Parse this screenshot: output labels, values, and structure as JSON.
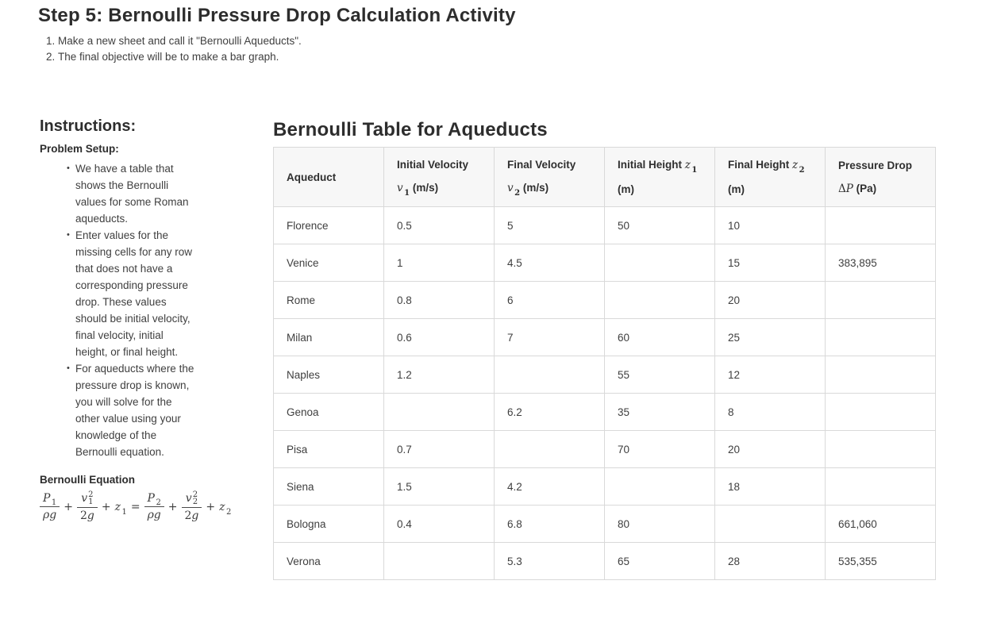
{
  "page": {
    "title": "Step 5: Bernoulli Pressure Drop Calculation Activity",
    "steps": [
      "Make a new sheet and call it \"Bernoulli Aqueducts\".",
      "The final objective will be to make a bar graph."
    ]
  },
  "instructions": {
    "heading": "Instructions:",
    "subheading": "Problem Setup:",
    "bullets": [
      "We have a table that shows the Bernoulli values for some Roman aqueducts.",
      "Enter values for the missing cells for any row that does not have a corresponding pressure drop. These values should be initial velocity, final velocity, initial height, or final height.",
      "For aqueducts where the pressure drop is known, you will solve for the other value using your knowledge of the Bernoulli equation."
    ],
    "equation_heading": "Bernoulli Equation"
  },
  "equation": {
    "terms": [
      {
        "type": "frac",
        "num": {
          "var": "P",
          "sub": "1"
        },
        "den": "ρg"
      },
      {
        "type": "op",
        "v": "+"
      },
      {
        "type": "frac",
        "num": {
          "var": "v",
          "sub": "1",
          "sup": "2"
        },
        "den": "2g"
      },
      {
        "type": "op",
        "v": "+"
      },
      {
        "type": "var",
        "var": "z",
        "sub": "1"
      },
      {
        "type": "op",
        "v": "="
      },
      {
        "type": "frac",
        "num": {
          "var": "P",
          "sub": "2"
        },
        "den": "ρg"
      },
      {
        "type": "op",
        "v": "+"
      },
      {
        "type": "frac",
        "num": {
          "var": "v",
          "sub": "2",
          "sup": "2"
        },
        "den": "2g"
      },
      {
        "type": "op",
        "v": "+"
      },
      {
        "type": "var",
        "var": "z",
        "sub": "2"
      }
    ]
  },
  "table": {
    "title": "Bernoulli Table for Aqueducts",
    "column_ids": [
      "aqueduct",
      "initial-velocity",
      "final-velocity",
      "initial-height",
      "final-height",
      "pressure-drop"
    ],
    "columns": [
      {
        "parts": [
          {
            "t": "b",
            "v": "Aqueduct"
          }
        ]
      },
      {
        "parts": [
          {
            "t": "b",
            "v": "Initial Velocity "
          },
          {
            "t": "m",
            "v": "v",
            "sub": "1"
          },
          {
            "t": "b",
            "v": " (m/s)"
          }
        ]
      },
      {
        "parts": [
          {
            "t": "b",
            "v": "Final Velocity "
          },
          {
            "t": "m",
            "v": "v",
            "sub": "2"
          },
          {
            "t": "b",
            "v": " (m/s)"
          }
        ]
      },
      {
        "parts": [
          {
            "t": "b",
            "v": "Initial Height "
          },
          {
            "t": "m",
            "v": "z",
            "sub": "1"
          },
          {
            "t": "b",
            "v": " (m)"
          }
        ]
      },
      {
        "parts": [
          {
            "t": "b",
            "v": "Final Height "
          },
          {
            "t": "m",
            "v": "z",
            "sub": "2"
          },
          {
            "t": "b",
            "v": " (m)"
          }
        ]
      },
      {
        "parts": [
          {
            "t": "b",
            "v": "Pressure Drop "
          },
          {
            "t": "m",
            "v": "P",
            "pre": "Δ"
          },
          {
            "t": "b",
            "v": " (Pa)"
          }
        ]
      }
    ],
    "rows": [
      {
        "cells": [
          "Florence",
          "0.5",
          "5",
          "50",
          "10",
          ""
        ]
      },
      {
        "cells": [
          "Venice",
          "1",
          "4.5",
          "",
          "15",
          "383,895"
        ]
      },
      {
        "cells": [
          "Rome",
          "0.8",
          "6",
          "",
          "20",
          ""
        ]
      },
      {
        "cells": [
          "Milan",
          "0.6",
          "7",
          "60",
          "25",
          ""
        ]
      },
      {
        "cells": [
          "Naples",
          "1.2",
          "",
          "55",
          "12",
          ""
        ]
      },
      {
        "cells": [
          "Genoa",
          "",
          "6.2",
          "35",
          "8",
          ""
        ]
      },
      {
        "cells": [
          "Pisa",
          "0.7",
          "",
          "70",
          "20",
          ""
        ]
      },
      {
        "cells": [
          "Siena",
          "1.5",
          "4.2",
          "",
          "18",
          ""
        ]
      },
      {
        "cells": [
          "Bologna",
          "0.4",
          "6.8",
          "80",
          "",
          "661,060"
        ]
      },
      {
        "cells": [
          "Verona",
          "",
          "5.3",
          "65",
          "28",
          "535,355"
        ]
      }
    ]
  },
  "colors": {
    "page_background": "#ffffff",
    "heading_text": "#2d2d2d",
    "body_text": "#3f3f3f",
    "table_header_background": "#f7f7f7",
    "table_border": "#d9d9d9"
  }
}
